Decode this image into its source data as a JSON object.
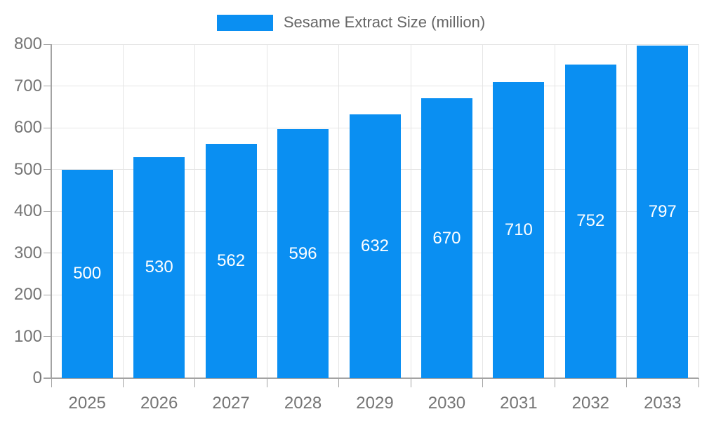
{
  "legend": {
    "label": "Sesame Extract Size (million)"
  },
  "chart_data": {
    "type": "bar",
    "title": "Sesame Extract Size (million)",
    "categories": [
      "2025",
      "2026",
      "2027",
      "2028",
      "2029",
      "2030",
      "2031",
      "2032",
      "2033"
    ],
    "values": [
      500,
      530,
      562,
      596,
      632,
      670,
      710,
      752,
      797
    ],
    "series_name": "Sesame Extract Size (million)",
    "xlabel": "",
    "ylabel": "",
    "ylim": [
      0,
      800
    ],
    "y_ticks": [
      0,
      100,
      200,
      300,
      400,
      500,
      600,
      700,
      800
    ],
    "grid": true,
    "legend_position": "top",
    "value_labels": "inside-center-white",
    "colors": {
      "bar": "#0a8ff2",
      "value_label": "#ffffff",
      "tick_label": "#757575",
      "legend_label": "#666666",
      "grid": "#e5e5e5",
      "axis": "#a3a3a3",
      "background": "#ffffff"
    }
  }
}
